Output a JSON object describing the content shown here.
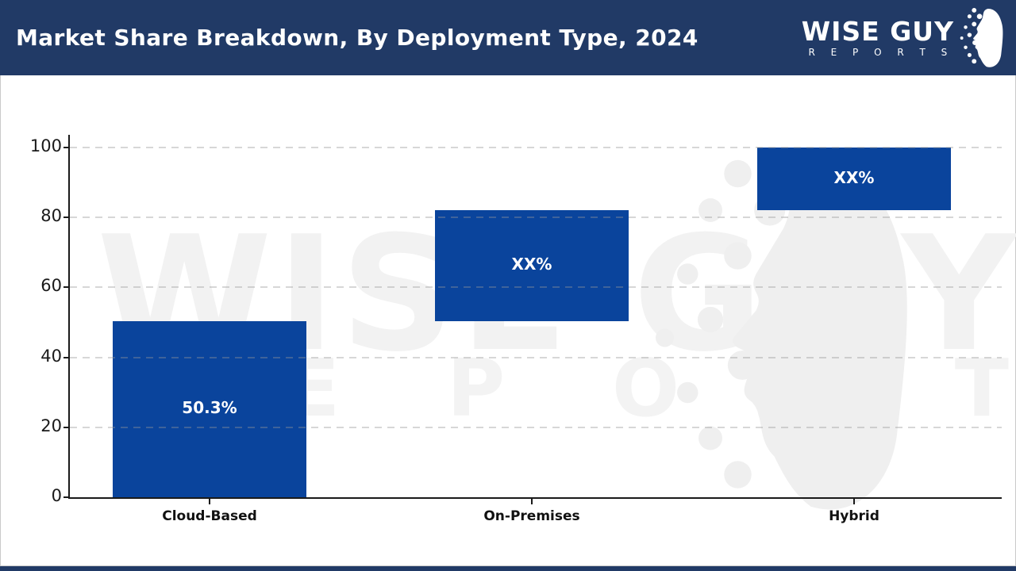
{
  "header": {
    "title": "Market Share Breakdown, By Deployment Type, 2024",
    "logo": {
      "line1": "WISE GUY",
      "line2": "R E P O R T S"
    }
  },
  "watermark": {
    "line1": "WISE GUY",
    "line2": "R E P O R T S"
  },
  "colors": {
    "header_bg": "#213a66",
    "footer_bg": "#213a66",
    "bar": "#0a449c",
    "axis": "#1a1a1a",
    "watermark": "#f2f2f2"
  },
  "chart_data": {
    "type": "bar",
    "variant": "waterfall",
    "title": "Market Share Breakdown, By Deployment Type, 2024",
    "categories": [
      "Cloud-Based",
      "On-Premises",
      "Hybrid"
    ],
    "segments": [
      {
        "category": "Cloud-Based",
        "start": 0,
        "end": 50.3,
        "label": "50.3%"
      },
      {
        "category": "On-Premises",
        "start": 50.3,
        "end": 82,
        "label": "XX%"
      },
      {
        "category": "Hybrid",
        "start": 82,
        "end": 100,
        "label": "XX%"
      }
    ],
    "yticks": [
      0,
      20,
      40,
      60,
      80,
      100
    ],
    "ylim": [
      0,
      105
    ],
    "grid": "horizontal-dashed",
    "legend": "none",
    "bar_color": "#0a449c"
  }
}
